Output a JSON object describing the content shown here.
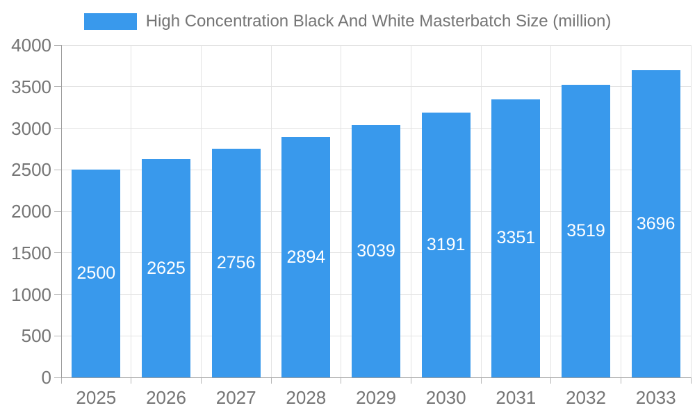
{
  "chart_data": {
    "type": "bar",
    "title": "High Concentration Black And White Masterbatch Size (million)",
    "categories": [
      "2025",
      "2026",
      "2027",
      "2028",
      "2029",
      "2030",
      "2031",
      "2032",
      "2033"
    ],
    "values": [
      2500,
      2625,
      2756,
      2894,
      3039,
      3191,
      3351,
      3519,
      3696
    ],
    "xlabel": "",
    "ylabel": "",
    "ylim": [
      0,
      4000
    ],
    "ytick_step": 500,
    "grid": true,
    "legend_position": "top",
    "colors": {
      "bar": "#3999EC",
      "grid": "#e3e3e3",
      "axis": "#9e9e9e",
      "tick": "#b5b5b5",
      "text": "#757575",
      "value_label": "#ffffff"
    }
  }
}
